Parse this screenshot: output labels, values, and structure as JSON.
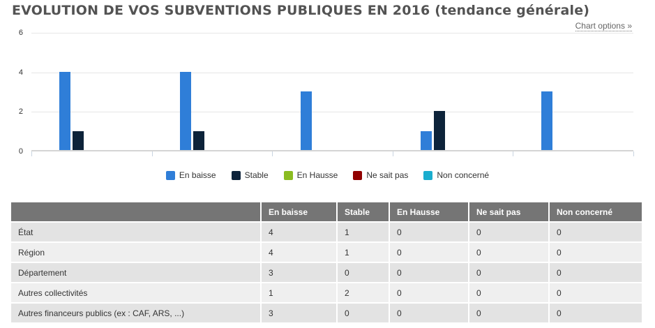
{
  "header": {
    "title": "EVOLUTION DE VOS SUBVENTIONS PUBLIQUES EN 2016 (tendance générale)",
    "chart_options_label": "Chart options »"
  },
  "chart_data": {
    "type": "bar",
    "title": "EVOLUTION DE VOS SUBVENTIONS PUBLIQUES EN 2016 (tendance générale)",
    "categories": [
      "État",
      "Région",
      "Département",
      "Autres collectivités",
      "Autres financeurs publics (ex : CAF, ARS, ...)"
    ],
    "series": [
      {
        "name": "En baisse",
        "color": "#2f7ed8",
        "values": [
          4,
          4,
          3,
          1,
          3
        ]
      },
      {
        "name": "Stable",
        "color": "#0d233a",
        "values": [
          1,
          1,
          0,
          2,
          0
        ]
      },
      {
        "name": "En Hausse",
        "color": "#8bbc21",
        "values": [
          0,
          0,
          0,
          0,
          0
        ]
      },
      {
        "name": "Ne sait pas",
        "color": "#910000",
        "values": [
          0,
          0,
          0,
          0,
          0
        ]
      },
      {
        "name": "Non concerné",
        "color": "#1aadce",
        "values": [
          0,
          0,
          0,
          0,
          0
        ]
      }
    ],
    "ylim": [
      0,
      6
    ],
    "yticks": [
      0,
      2,
      4,
      6
    ],
    "grid": true,
    "legend_position": "bottom",
    "xlabel": "",
    "ylabel": ""
  },
  "table": {
    "columns": [
      "",
      "En baisse",
      "Stable",
      "En Hausse",
      "Ne sait pas",
      "Non concerné"
    ],
    "rows": [
      {
        "label": "État",
        "values": [
          4,
          1,
          0,
          0,
          0
        ]
      },
      {
        "label": "Région",
        "values": [
          4,
          1,
          0,
          0,
          0
        ]
      },
      {
        "label": "Département",
        "values": [
          3,
          0,
          0,
          0,
          0
        ]
      },
      {
        "label": "Autres collectivités",
        "values": [
          1,
          2,
          0,
          0,
          0
        ]
      },
      {
        "label": "Autres financeurs publics (ex : CAF, ARS, ...)",
        "values": [
          3,
          0,
          0,
          0,
          0
        ]
      }
    ]
  }
}
